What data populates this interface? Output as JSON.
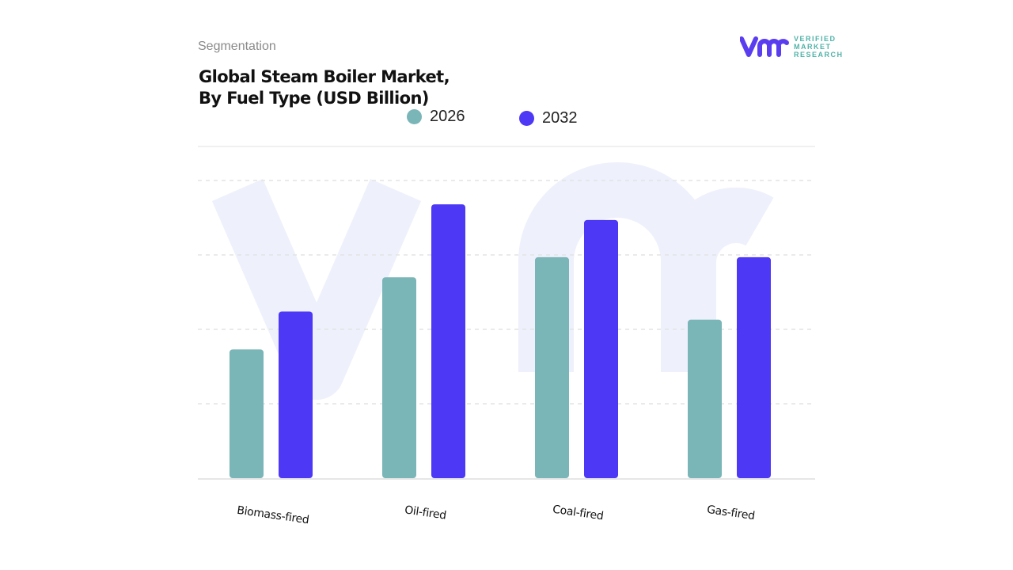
{
  "header": {
    "segment_label": "Segmentation",
    "title_line1": "Global Steam Boiler Market,",
    "title_line2": "By Fuel Type (USD Billion)"
  },
  "logo": {
    "mark": "vmr",
    "line1": "VERIFIED",
    "line2": "MARKET",
    "line3": "RESEARCH",
    "registered": "®"
  },
  "chart_data": {
    "type": "bar",
    "title": "Global Steam Boiler Market, By Fuel Type (USD Billion)",
    "categories": [
      "Biomass-fired",
      "Oil-fired",
      "Coal-fired",
      "Gas-fired"
    ],
    "series": [
      {
        "name": "2026",
        "color": "#7ab5b7",
        "values": [
          1.73,
          2.7,
          2.97,
          2.13
        ]
      },
      {
        "name": "2032",
        "color": "#4c38f5",
        "values": [
          2.24,
          3.68,
          3.47,
          2.97
        ]
      }
    ],
    "ylim": [
      0,
      4
    ],
    "y_tick_labels_shown": false,
    "grid": true,
    "legend": "top-center"
  }
}
